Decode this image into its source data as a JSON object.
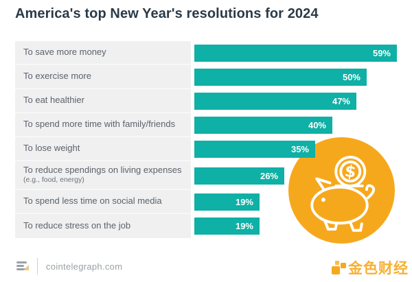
{
  "title": "America's top New Year's resolutions for 2024",
  "chart_data": {
    "type": "bar",
    "orientation": "horizontal",
    "title": "America's top New Year's resolutions for 2024",
    "categories": [
      "To save more money",
      "To exercise more",
      "To eat healthier",
      "To spend more time with family/friends",
      "To lose weight",
      "To reduce spendings on living expenses",
      "To spend less time on social media",
      "To reduce stress on the job"
    ],
    "category_notes": [
      "",
      "",
      "",
      "",
      "",
      "(e.g., food, energy)",
      "",
      ""
    ],
    "values": [
      59,
      50,
      47,
      40,
      35,
      26,
      19,
      19
    ],
    "value_labels": [
      "59%",
      "50%",
      "47%",
      "40%",
      "35%",
      "26%",
      "19%",
      "19%"
    ],
    "value_suffix": "%",
    "xlim": [
      0,
      62
    ],
    "grid": false,
    "legend": false,
    "bar_color": "#0FB0A5",
    "value_label_color": "#FFFFFF"
  },
  "illustration": {
    "name": "piggy-bank-with-coin",
    "circle_color": "#F6A81D",
    "line_color": "#FFFFFF",
    "coin_symbol": "$"
  },
  "footer": {
    "source": "cointelegraph.com"
  },
  "watermark": {
    "text": "金色财经",
    "color": "#F7A81C"
  }
}
